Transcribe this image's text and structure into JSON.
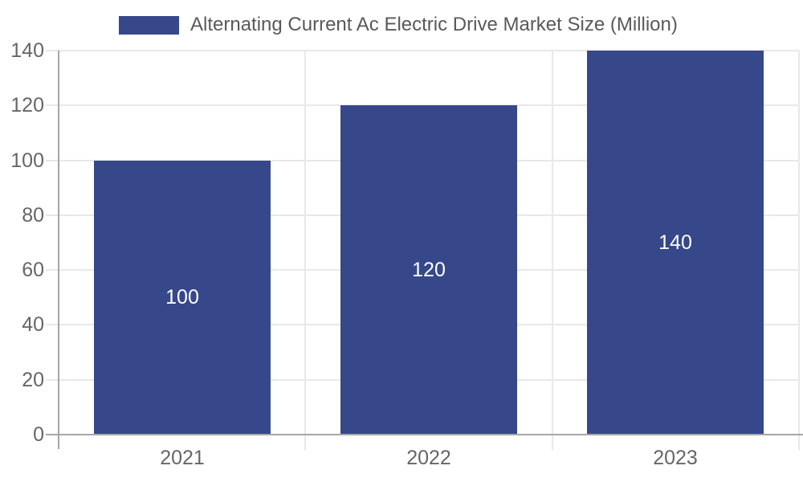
{
  "legend": {
    "label": "Alternating Current Ac Electric Drive Market Size (Million)"
  },
  "chart_data": {
    "type": "bar",
    "title": "Alternating Current Ac Electric Drive Market Size (Million)",
    "series_name": "Alternating Current Ac Electric Drive Market Size (Million)",
    "categories": [
      "2021",
      "2022",
      "2023"
    ],
    "values": [
      100,
      120,
      140
    ],
    "bar_value_labels": [
      "100",
      "120",
      "140"
    ],
    "xlabel": "",
    "ylabel": "",
    "ylim": [
      0,
      140
    ],
    "yticks": [
      0,
      20,
      40,
      60,
      80,
      100,
      120,
      140
    ],
    "ytick_labels": [
      "0",
      "20",
      "40",
      "60",
      "80",
      "100",
      "120",
      "140"
    ],
    "grid": true,
    "legend_position": "top"
  },
  "colors": {
    "bar": "#36488A",
    "legend_text": "#595959",
    "tick_text": "#666666",
    "bar_label_text": "#ffffff",
    "grid": "#e8e8e8",
    "axis": "#a6a6a6",
    "background": "#ffffff"
  }
}
